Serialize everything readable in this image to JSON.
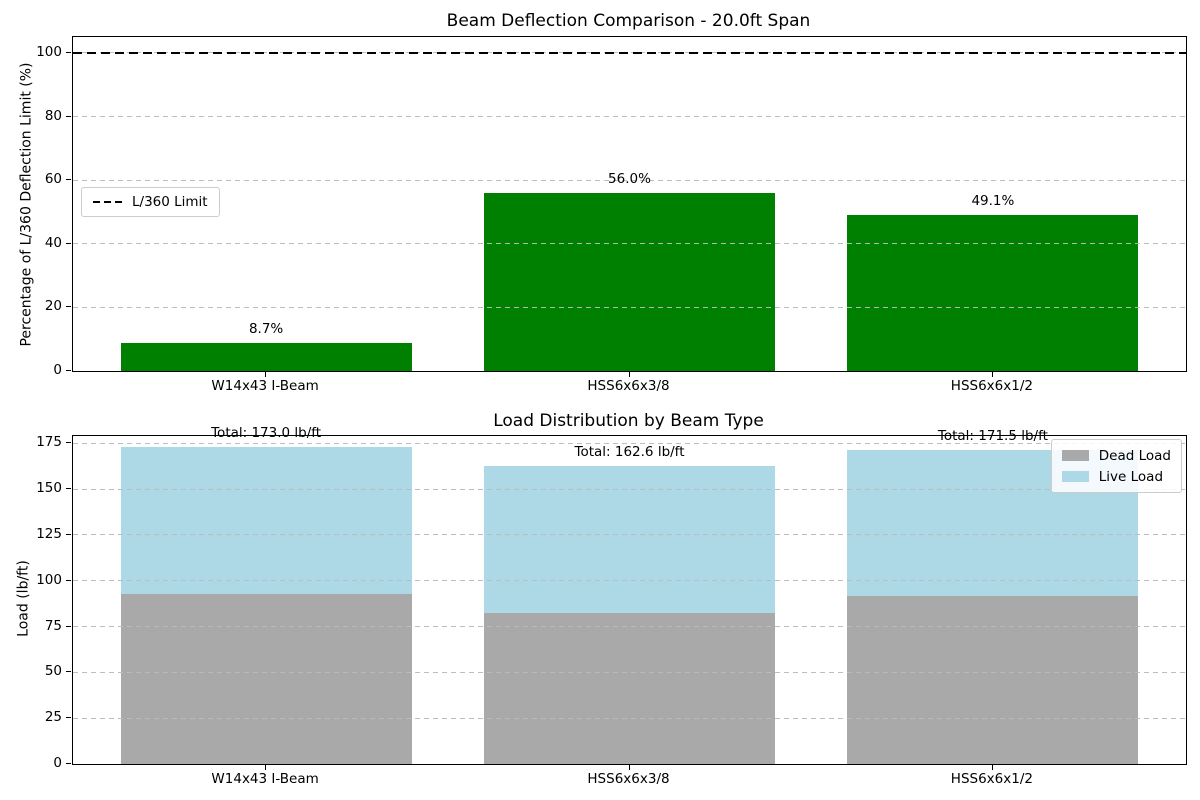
{
  "figure": {
    "background": "#ffffff"
  },
  "chart_data": [
    {
      "type": "bar",
      "title": "Beam Deflection Comparison - 20.0ft Span",
      "ylabel": "Percentage of L/360 Deflection Limit (%)",
      "xlabel": "",
      "categories": [
        "W14x43 I-Beam",
        "HSS6x6x3/8",
        "HSS6x6x1/2"
      ],
      "values": [
        8.7,
        56.0,
        49.1
      ],
      "bar_labels": [
        "8.7%",
        "56.0%",
        "49.1%"
      ],
      "bar_color": "#008000",
      "yticks": [
        0,
        20,
        40,
        60,
        80,
        100
      ],
      "ylim": [
        0,
        105
      ],
      "grid": "horizontal-dashed",
      "reference_line": {
        "value": 100,
        "label": "L/360 Limit",
        "style": "dashed",
        "color": "#000000"
      },
      "legend_position": "center-left"
    },
    {
      "type": "stacked-bar",
      "title": "Load Distribution by Beam Type",
      "ylabel": "Load (lb/ft)",
      "xlabel": "",
      "categories": [
        "W14x43 I-Beam",
        "HSS6x6x3/8",
        "HSS6x6x1/2"
      ],
      "series": [
        {
          "name": "Dead Load",
          "color": "#a9a9a9",
          "values": [
            93.0,
            82.6,
            91.5
          ]
        },
        {
          "name": "Live Load",
          "color": "#add8e6",
          "values": [
            80.0,
            80.0,
            80.0
          ]
        }
      ],
      "totals": [
        173.0,
        162.6,
        171.5
      ],
      "total_labels": [
        "Total: 173.0 lb/ft",
        "Total: 162.6 lb/ft",
        "Total: 171.5 lb/ft"
      ],
      "yticks": [
        0,
        25,
        50,
        75,
        100,
        125,
        150,
        175
      ],
      "ylim": [
        0,
        179
      ],
      "grid": "horizontal-dashed",
      "legend_position": "top-right"
    }
  ]
}
